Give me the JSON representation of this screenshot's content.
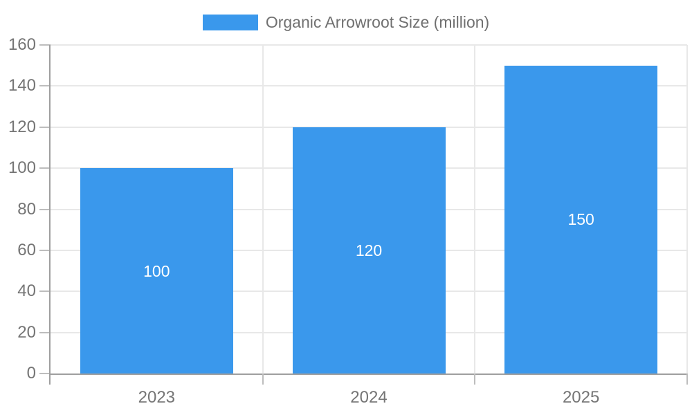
{
  "chart_data": {
    "type": "bar",
    "title": "",
    "legend": "Organic Arrowroot Size (million)",
    "legend_position": "top",
    "categories": [
      "2023",
      "2024",
      "2025"
    ],
    "series": [
      {
        "name": "Organic Arrowroot Size (million)",
        "values": [
          100,
          120,
          150
        ]
      }
    ],
    "value_labels": [
      "100",
      "120",
      "150"
    ],
    "xlabel": "",
    "ylabel": "",
    "ylim": [
      0,
      160
    ],
    "ytick_step": 20,
    "yticks": [
      "0",
      "20",
      "40",
      "60",
      "80",
      "100",
      "120",
      "140",
      "160"
    ],
    "grid": true
  },
  "colors": {
    "bar": "#3A98EC",
    "bar_value_text": "#FFFFFF",
    "grid": "#E8E8E8",
    "axis": "#9E9E9E",
    "tick": "#BDBDBD",
    "tick_label_text": "#757575",
    "legend_text": "#707070",
    "background": "#FFFFFF"
  }
}
